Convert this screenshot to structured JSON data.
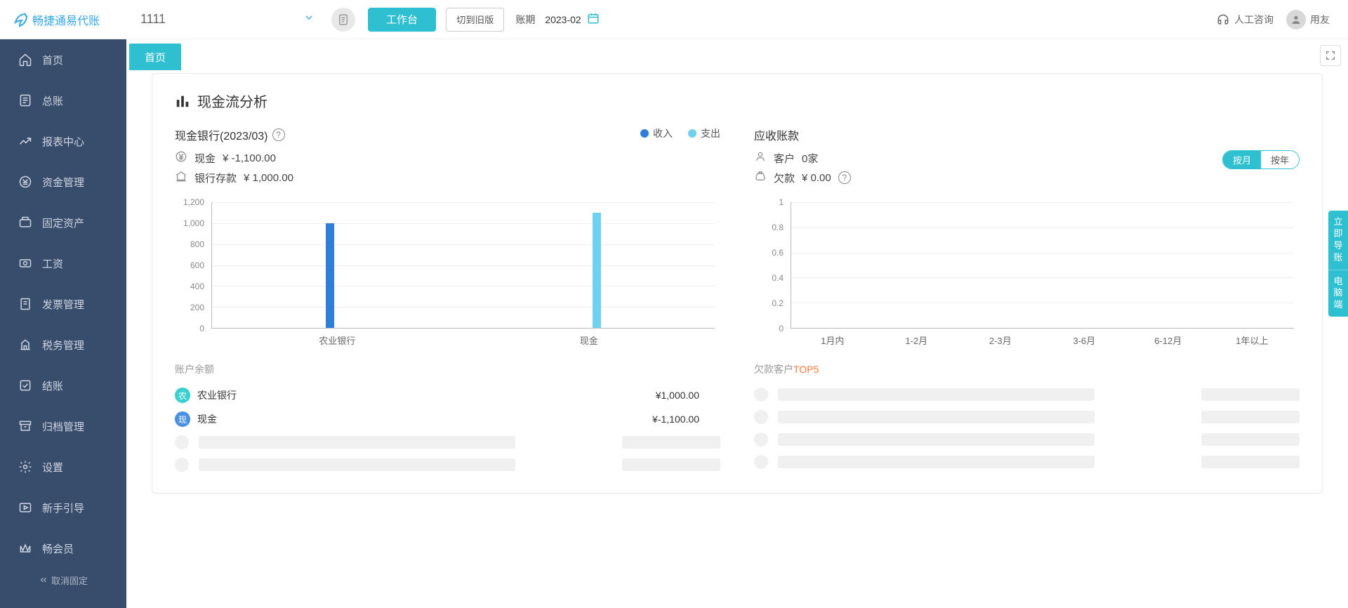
{
  "brand": "畅捷通易代账",
  "header": {
    "company": "1111",
    "workbench_btn": "工作台",
    "old_version_btn": "切到旧版",
    "period_label": "账期",
    "period_value": "2023-02",
    "consult_label": "人工咨询",
    "user_name": "用友"
  },
  "sidebar": {
    "items": [
      {
        "icon": "home",
        "label": "首页"
      },
      {
        "icon": "ledger",
        "label": "总账"
      },
      {
        "icon": "report",
        "label": "报表中心"
      },
      {
        "icon": "fund",
        "label": "资金管理"
      },
      {
        "icon": "asset",
        "label": "固定资产"
      },
      {
        "icon": "salary",
        "label": "工资"
      },
      {
        "icon": "invoice",
        "label": "发票管理"
      },
      {
        "icon": "tax",
        "label": "税务管理"
      },
      {
        "icon": "close",
        "label": "结账"
      },
      {
        "icon": "archive",
        "label": "归档管理"
      },
      {
        "icon": "settings",
        "label": "设置"
      },
      {
        "icon": "guide",
        "label": "新手引导"
      },
      {
        "icon": "vip",
        "label": "畅会员"
      }
    ],
    "pin_label": "取消固定"
  },
  "tabs": {
    "active": "首页"
  },
  "float_buttons": [
    "立即导账",
    "电脑端"
  ],
  "card": {
    "title": "现金流分析",
    "left": {
      "title": "现金银行(2023/03)",
      "cash_label": "现金",
      "cash_value": "¥ -1,100.00",
      "deposit_label": "银行存款",
      "deposit_value": "¥ 1,000.00",
      "legend_income": "收入",
      "legend_expense": "支出",
      "chart": {
        "type": "bar",
        "ylim": [
          0,
          1200
        ],
        "ytick_step": 200,
        "yticks": [
          "0",
          "200",
          "400",
          "600",
          "800",
          "1,000",
          "1,200"
        ],
        "categories": [
          "农业银行",
          "现金"
        ],
        "series": [
          {
            "name": "收入",
            "color": "#2f7ed8",
            "values": [
              1000,
              0
            ]
          },
          {
            "name": "支出",
            "color": "#6fd0f0",
            "values": [
              0,
              1100
            ]
          }
        ],
        "grid_color": "#eeeeee",
        "axis_color": "#bbbbbb"
      },
      "balance_title": "账户余额",
      "balances": [
        {
          "badge": "农",
          "badge_color": "#3bcfd0",
          "name": "农业银行",
          "amount": "¥1,000.00"
        },
        {
          "badge": "现",
          "badge_color": "#4a90e2",
          "name": "现金",
          "amount": "¥-1,100.00"
        }
      ]
    },
    "right": {
      "title": "应收账款",
      "customer_label": "客户",
      "customer_value": "0家",
      "debt_label": "欠款",
      "debt_value": "¥ 0.00",
      "toggle_month": "按月",
      "toggle_year": "按年",
      "chart": {
        "type": "bar",
        "ylim": [
          0,
          1
        ],
        "ytick_step": 0.2,
        "yticks": [
          "0",
          "0.2",
          "0.4",
          "0.6",
          "0.8",
          "1"
        ],
        "categories": [
          "1月内",
          "1-2月",
          "2-3月",
          "3-6月",
          "6-12月",
          "1年以上"
        ],
        "series": [],
        "grid_color": "#eeeeee",
        "axis_color": "#bbbbbb"
      },
      "top5_label_a": "欠款客户",
      "top5_label_b": "TOP5"
    }
  }
}
